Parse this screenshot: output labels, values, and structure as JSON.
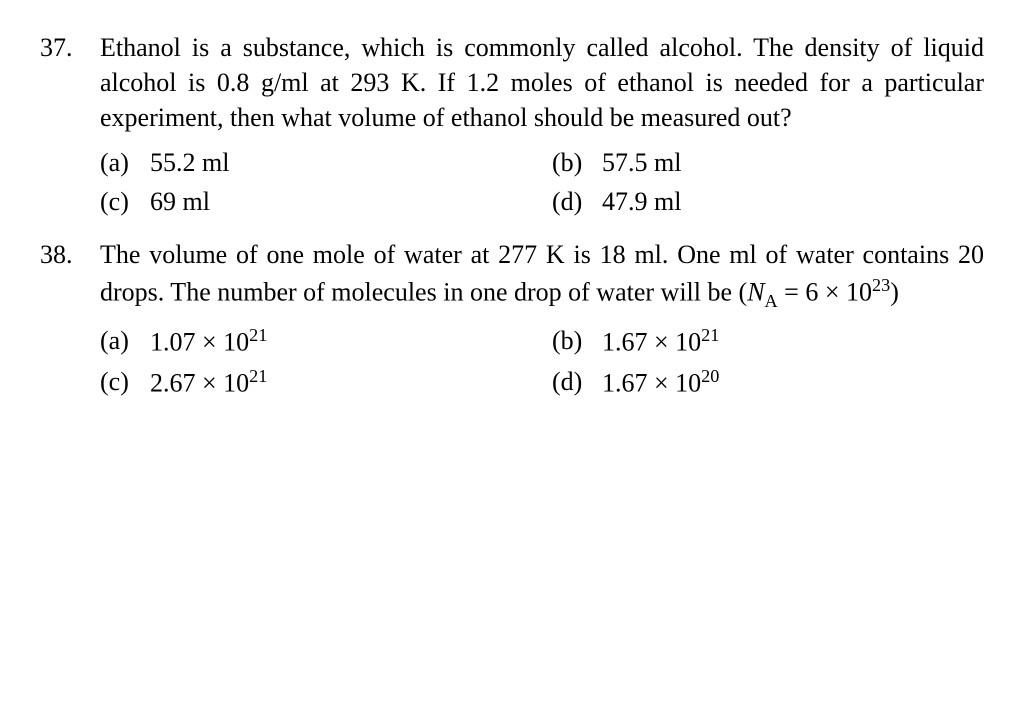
{
  "questions": [
    {
      "number": "37.",
      "stem": "Ethanol is a substance, which is commonly called alcohol. The density of liquid alcohol is 0.8 g/ml at 293 K. If 1.2 moles of ethanol is needed for a particular experiment, then what volume of ethanol should be measured out?",
      "options": [
        {
          "label": "(a)",
          "text": "55.2 ml"
        },
        {
          "label": "(b)",
          "text": "57.5 ml"
        },
        {
          "label": "(c)",
          "text": "69 ml"
        },
        {
          "label": "(d)",
          "text": "47.9 ml"
        }
      ]
    },
    {
      "number": "38.",
      "stem_parts": {
        "pre": "The volume of one mole of water at 277 K is 18 ml. One ml of water contains 20 drops. The number of molecules in one drop of water will be (",
        "nvar": "N",
        "nsub": "A",
        "eq": " = 6 × 10",
        "exp": "23",
        "post": ")"
      },
      "options": [
        {
          "label": "(a)",
          "base": "1.07 × 10",
          "exp": "21"
        },
        {
          "label": "(b)",
          "base": "1.67 × 10",
          "exp": "21"
        },
        {
          "label": "(c)",
          "base": "2.67 × 10",
          "exp": "21"
        },
        {
          "label": "(d)",
          "base": "1.67 × 10",
          "exp": "20"
        }
      ]
    }
  ]
}
